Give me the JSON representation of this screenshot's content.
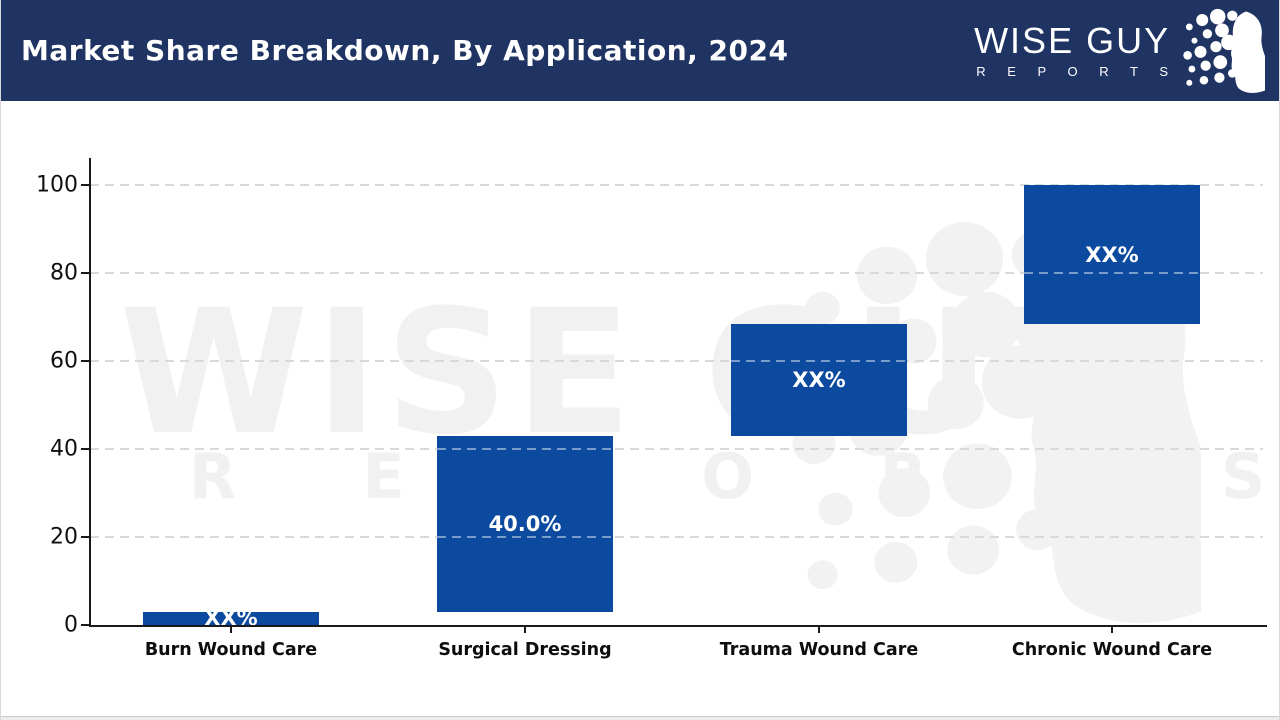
{
  "header": {
    "title": "Market Share Breakdown, By Application, 2024",
    "logo": {
      "line1": "WISE GUY",
      "line2": "R E P O R T S"
    }
  },
  "watermark": {
    "line1": "WISE GUY",
    "line2": "R E P O R T S"
  },
  "colors": {
    "header_bg": "#1f3462",
    "bar": "#0b4a9e",
    "grid": "#d9d9d9",
    "axis": "#1a1a1a",
    "watermark": "#f1f1f1",
    "bar_label": "#ffffff"
  },
  "chart_data": {
    "type": "bar",
    "subtype": "waterfall",
    "title": "Market Share Breakdown, By Application, 2024",
    "categories": [
      "Burn Wound Care",
      "Surgical Dressing",
      "Trauma Wound Care",
      "Chronic Wound Care"
    ],
    "segments": [
      {
        "category": "Burn Wound Care",
        "start": 0,
        "end": 3,
        "label": "XX%"
      },
      {
        "category": "Surgical Dressing",
        "start": 3,
        "end": 43,
        "label": "40.0%"
      },
      {
        "category": "Trauma Wound Care",
        "start": 43,
        "end": 68.3,
        "label": "XX%"
      },
      {
        "category": "Chronic Wound Care",
        "start": 68.3,
        "end": 100,
        "label": "XX%"
      }
    ],
    "y_ticks": [
      0,
      20,
      40,
      60,
      80,
      100
    ],
    "ylim": [
      0,
      106
    ],
    "xlabel": "",
    "ylabel": "",
    "grid": "horizontal-dashed",
    "legend": "none"
  }
}
